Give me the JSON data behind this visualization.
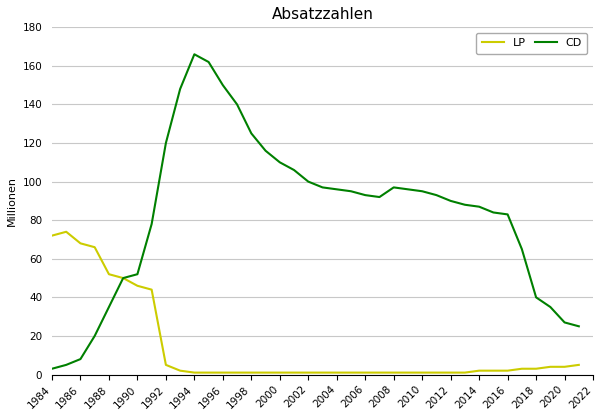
{
  "title": "Absatzzahlen",
  "ylabel": "Millionen",
  "lp_color": "#cccc00",
  "cd_color": "#008000",
  "background_color": "#ffffff",
  "plot_background": "#ffffff",
  "grid_color": "#c8c8c8",
  "ylim": [
    0,
    180
  ],
  "yticks": [
    0,
    20,
    40,
    60,
    80,
    100,
    120,
    140,
    160,
    180
  ],
  "years": [
    1984,
    1985,
    1986,
    1987,
    1988,
    1989,
    1990,
    1991,
    1992,
    1993,
    1994,
    1995,
    1996,
    1997,
    1998,
    1999,
    2000,
    2001,
    2002,
    2003,
    2004,
    2005,
    2006,
    2007,
    2008,
    2009,
    2010,
    2011,
    2012,
    2013,
    2014,
    2015,
    2016,
    2017,
    2018,
    2019,
    2020,
    2021
  ],
  "lp_values": [
    72,
    74,
    68,
    66,
    52,
    50,
    46,
    44,
    5,
    2,
    1,
    1,
    1,
    1,
    1,
    1,
    1,
    1,
    1,
    1,
    1,
    1,
    1,
    1,
    1,
    1,
    1,
    1,
    1,
    1,
    2,
    2,
    2,
    3,
    3,
    4,
    4,
    5
  ],
  "cd_values": [
    3,
    5,
    8,
    20,
    35,
    50,
    52,
    78,
    120,
    148,
    166,
    162,
    150,
    140,
    125,
    116,
    110,
    106,
    100,
    97,
    96,
    95,
    93,
    92,
    97,
    96,
    95,
    93,
    90,
    88,
    87,
    84,
    83,
    65,
    40,
    35,
    27,
    25
  ],
  "legend_loc": "upper right",
  "line_width": 1.5,
  "title_fontsize": 11,
  "label_fontsize": 8,
  "tick_fontsize": 7.5
}
